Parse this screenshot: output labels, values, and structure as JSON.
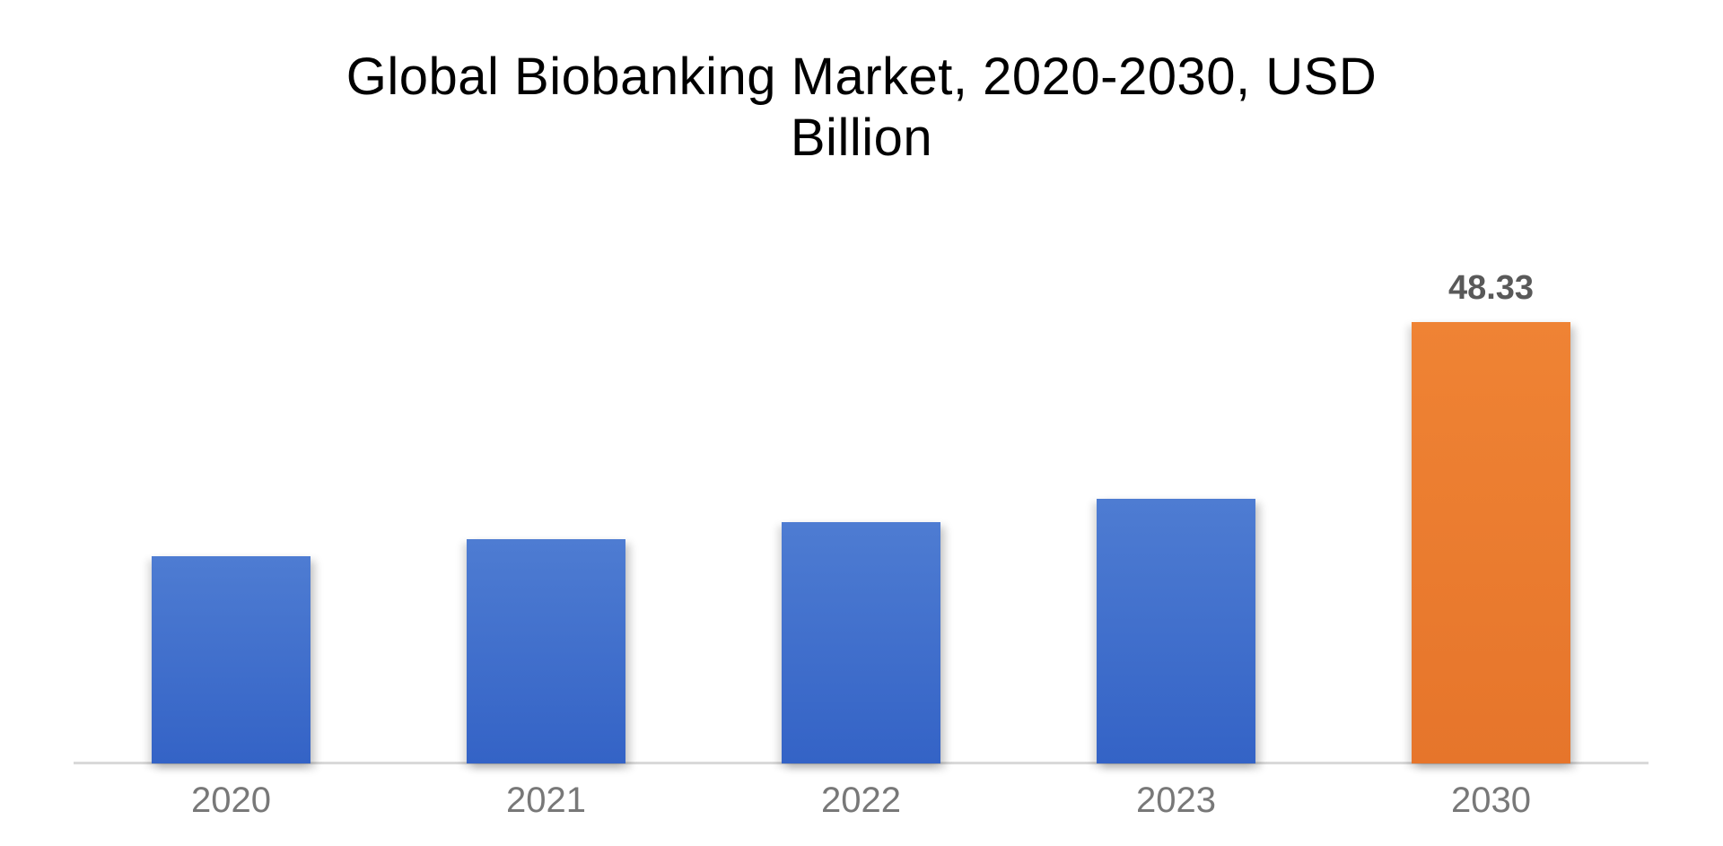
{
  "chart_data": {
    "type": "bar",
    "title": "Global Biobanking Market, 2020-2030, USD Billion",
    "xlabel": "",
    "ylabel": "",
    "categories": [
      "2020",
      "2021",
      "2022",
      "2023",
      "2030"
    ],
    "values": [
      22.7,
      24.6,
      26.4,
      29.0,
      48.33
    ],
    "data_labels": [
      "",
      "",
      "",
      "",
      "48.33"
    ],
    "bar_styles": [
      "blue",
      "blue",
      "blue",
      "blue",
      "orange"
    ],
    "ylim": [
      0,
      50
    ],
    "grid": false,
    "legend": false,
    "y_axis_visible": false,
    "x_axis_line_visible": true
  },
  "colors": {
    "bar_blue_top": "#4E7CD2",
    "bar_blue_bottom": "#3463C6",
    "bar_orange_top": "#EF8334",
    "bar_orange_bottom": "#E6752B",
    "axis_line": "#D9D9D9",
    "tick_label": "#787878",
    "data_label": "#595959",
    "title_text": "#000000",
    "background": "#FFFFFF"
  }
}
